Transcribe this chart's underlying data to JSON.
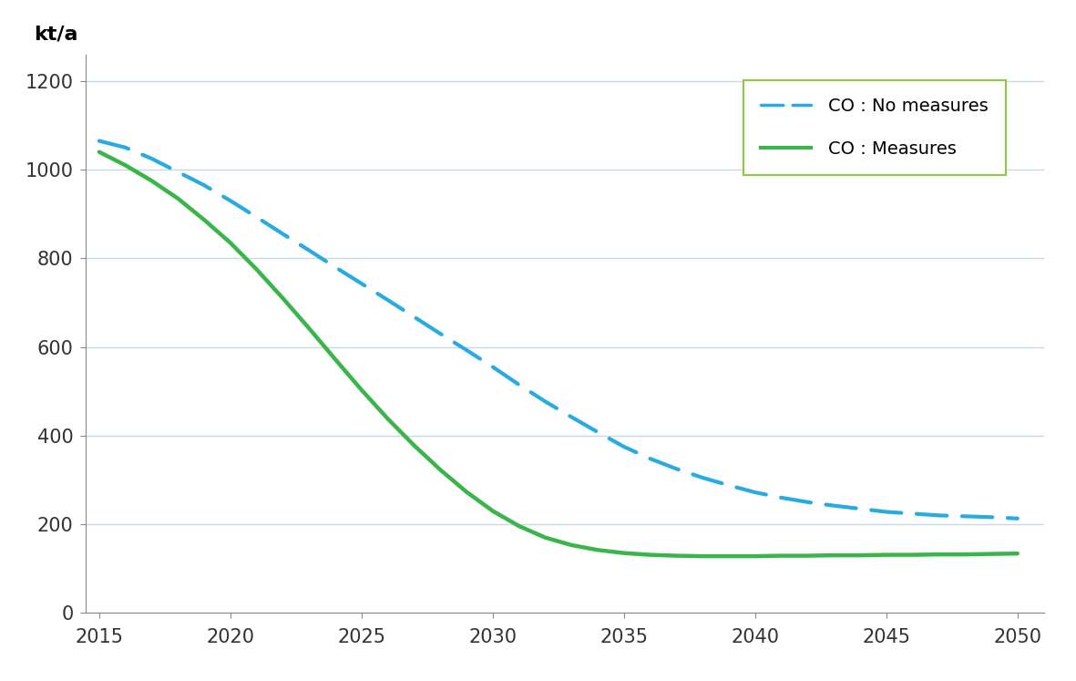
{
  "no_measures_x": [
    2015,
    2016,
    2017,
    2018,
    2019,
    2020,
    2021,
    2022,
    2023,
    2024,
    2025,
    2026,
    2027,
    2028,
    2029,
    2030,
    2031,
    2032,
    2033,
    2034,
    2035,
    2036,
    2037,
    2038,
    2039,
    2040,
    2041,
    2042,
    2043,
    2044,
    2045,
    2046,
    2047,
    2048,
    2049,
    2050
  ],
  "no_measures_y": [
    1065,
    1050,
    1025,
    995,
    965,
    930,
    893,
    855,
    818,
    780,
    743,
    706,
    668,
    630,
    593,
    555,
    515,
    477,
    442,
    408,
    375,
    348,
    325,
    305,
    288,
    272,
    260,
    250,
    242,
    235,
    228,
    224,
    220,
    218,
    216,
    213
  ],
  "measures_x": [
    2015,
    2016,
    2017,
    2018,
    2019,
    2020,
    2021,
    2022,
    2023,
    2024,
    2025,
    2026,
    2027,
    2028,
    2029,
    2030,
    2031,
    2032,
    2033,
    2034,
    2035,
    2036,
    2037,
    2038,
    2039,
    2040,
    2041,
    2042,
    2043,
    2044,
    2045,
    2046,
    2047,
    2048,
    2049,
    2050
  ],
  "measures_y": [
    1040,
    1010,
    975,
    935,
    887,
    835,
    775,
    710,
    642,
    572,
    503,
    438,
    378,
    323,
    273,
    230,
    196,
    170,
    153,
    142,
    135,
    131,
    129,
    128,
    128,
    128,
    129,
    129,
    130,
    130,
    131,
    131,
    132,
    132,
    133,
    134
  ],
  "no_measures_color": "#29ABE2",
  "measures_color": "#39B54A",
  "legend_box_color": "#8DC63F",
  "grid_color": "#C8D8E8",
  "axis_color": "#888888",
  "tick_color": "#333333",
  "ylabel": "kt/a",
  "ylim": [
    0,
    1260
  ],
  "yticks": [
    0,
    200,
    400,
    600,
    800,
    1000,
    1200
  ],
  "xlim": [
    2014.5,
    2051
  ],
  "xticks": [
    2015,
    2020,
    2025,
    2030,
    2035,
    2040,
    2045,
    2050
  ],
  "legend_label_no_measures": "CO : No measures",
  "legend_label_measures": "CO : Measures",
  "background_color": "#FFFFFF"
}
